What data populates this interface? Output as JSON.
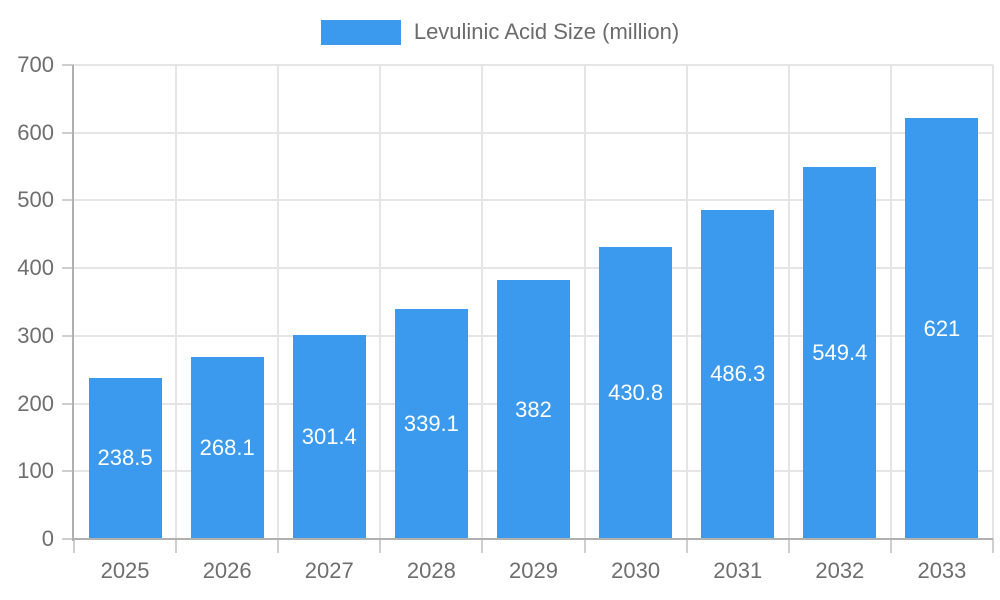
{
  "legend": {
    "label": "Levulinic Acid Size (million)"
  },
  "chart_data": {
    "type": "bar",
    "title": "Levulinic Acid Size (million)",
    "series_name": "Levulinic Acid Size (million)",
    "categories": [
      "2025",
      "2026",
      "2027",
      "2028",
      "2029",
      "2030",
      "2031",
      "2032",
      "2033"
    ],
    "values": [
      238.5,
      268.1,
      301.4,
      339.1,
      382,
      430.8,
      486.3,
      549.4,
      621
    ],
    "value_labels": [
      "238.5",
      "268.1",
      "301.4",
      "339.1",
      "382",
      "430.8",
      "486.3",
      "549.4",
      "621"
    ],
    "xlabel": "",
    "ylabel": "",
    "ylim": [
      0,
      700
    ],
    "yticks": [
      0,
      100,
      200,
      300,
      400,
      500,
      600,
      700
    ],
    "grid": true,
    "legend_position": "top-center",
    "colors": {
      "bar": "#3B9AED",
      "value_label": "#FFFFFF",
      "axis_text": "#6E6E6E",
      "legend_text": "#6B6B6B",
      "grid_line": "#E5E5E5",
      "axis_line": "#B0B0B0",
      "tick": "#CFCFCF",
      "background": "#FFFFFF"
    }
  }
}
